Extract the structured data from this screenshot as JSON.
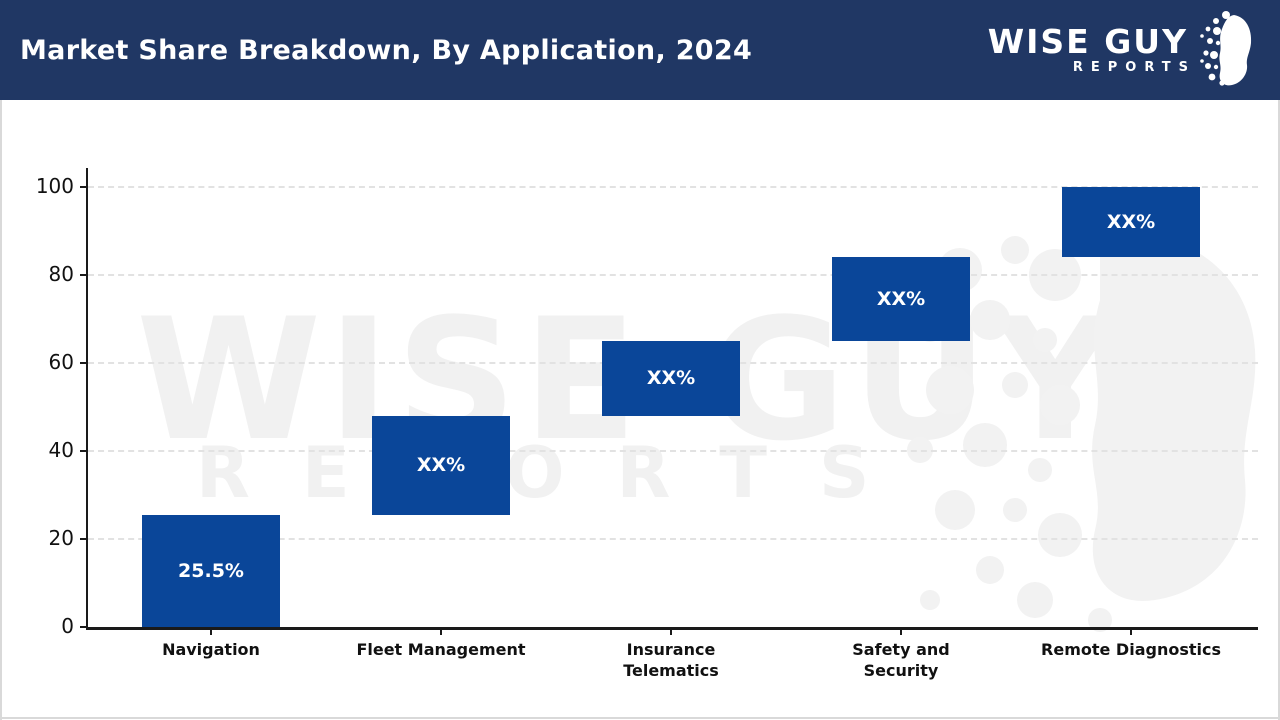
{
  "header": {
    "title": "Market Share Breakdown, By Application, 2024",
    "logo": {
      "line1": "WISE GUY",
      "line2": "REPORTS"
    }
  },
  "watermark": {
    "line1": "WISE GUY",
    "line2": "REPORTS"
  },
  "colors": {
    "header_bg": "#203764",
    "bar": "#0a4699",
    "bar_label_text": "#ffffff",
    "grid": "#e2e2e2",
    "axis": "#1a1a1a",
    "watermark": "#f1f1f1",
    "title_text": "#ffffff"
  },
  "chart_data": {
    "type": "bar",
    "subtype": "floating-segment-waterfall",
    "title": "Market Share Breakdown, By Application, 2024",
    "xlabel": "",
    "ylabel": "",
    "categories": [
      "Navigation",
      "Fleet Management",
      "Insurance\nTelematics",
      "Safety and\nSecurity",
      "Remote Diagnostics"
    ],
    "segments": [
      {
        "category": "Navigation",
        "start": 0,
        "end": 25.5,
        "label": "25.5%"
      },
      {
        "category": "Fleet Management",
        "start": 25.5,
        "end": 48,
        "label": "XX%"
      },
      {
        "category": "Insurance Telematics",
        "start": 48,
        "end": 65,
        "label": "XX%"
      },
      {
        "category": "Safety and Security",
        "start": 65,
        "end": 84,
        "label": "XX%"
      },
      {
        "category": "Remote Diagnostics",
        "start": 84,
        "end": 100,
        "label": "XX%"
      }
    ],
    "yticks": [
      0,
      20,
      40,
      60,
      80,
      100
    ],
    "ylim": [
      0,
      104
    ],
    "grid": "horizontal-dashed",
    "legend": "none"
  }
}
